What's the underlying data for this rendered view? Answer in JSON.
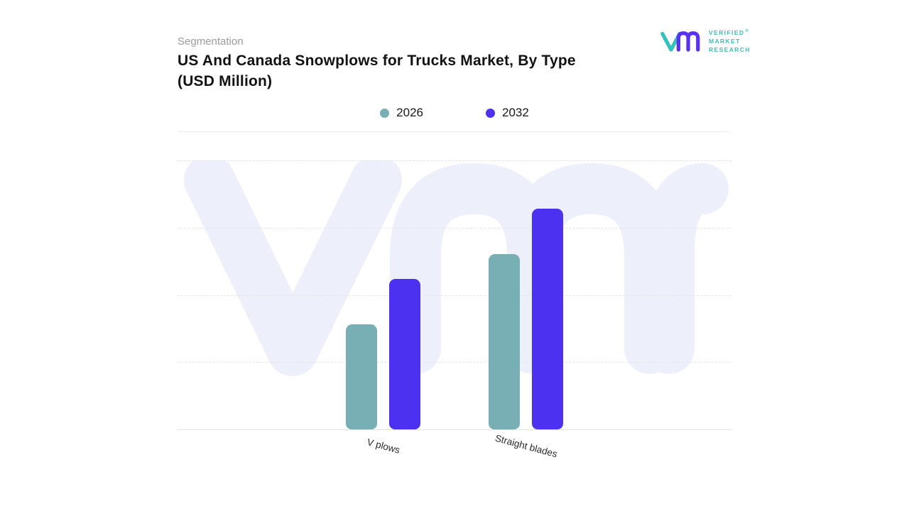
{
  "header": {
    "eyebrow": "Segmentation",
    "title": "US And Canada Snowplows for Trucks Market, By Type (USD Million)"
  },
  "logo": {
    "line1": "VERIFIED",
    "line2": "MARKET",
    "line3": "RESEARCH",
    "reg": "®",
    "teal": "#3fbcb9",
    "purple": "#5a31f0"
  },
  "chart_data": {
    "type": "bar",
    "title": "US And Canada Snowplows for Trucks Market, By Type (USD Million)",
    "categories": [
      "V plows",
      "Straight blades"
    ],
    "series": [
      {
        "name": "2026",
        "color": "#78afb4",
        "values": [
          156,
          261
        ]
      },
      {
        "name": "2032",
        "color": "#4c31f0",
        "values": [
          224,
          328
        ]
      }
    ],
    "ylim": [
      0,
      400
    ],
    "xlabel": "",
    "ylabel": "",
    "grid": "horizontal-dashed",
    "gridline_levels_pct": [
      0,
      25,
      50,
      75
    ],
    "value_axis_labels_visible": false,
    "legend_position": "top-center",
    "category_label_rotation_deg": 15
  }
}
